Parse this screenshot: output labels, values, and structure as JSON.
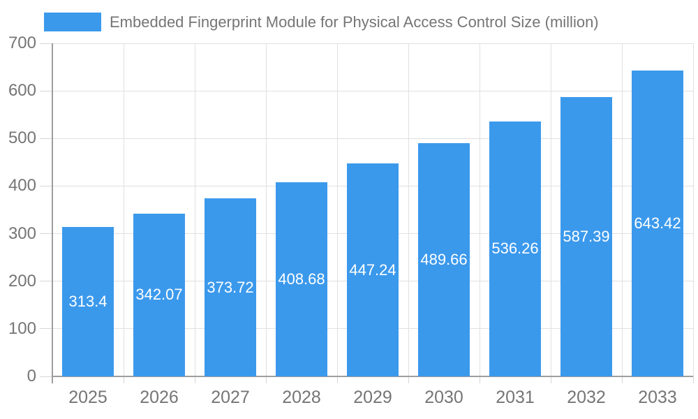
{
  "chart_data": {
    "type": "bar",
    "title": "Embedded Fingerprint Module for Physical Access Control Size (million)",
    "series_name": "Embedded Fingerprint Module for Physical Access Control Size (million)",
    "categories": [
      "2025",
      "2026",
      "2027",
      "2028",
      "2029",
      "2030",
      "2031",
      "2032",
      "2033"
    ],
    "values": [
      313.4,
      342.07,
      373.72,
      408.68,
      447.24,
      489.66,
      536.26,
      587.39,
      643.42
    ],
    "xlabel": "",
    "ylabel": "",
    "ylim": [
      0,
      700
    ],
    "yticks": [
      0,
      100,
      200,
      300,
      400,
      500,
      600,
      700
    ],
    "grid": true,
    "legend_position": "top",
    "value_label_position": "inside-center",
    "colors": {
      "bar": "#3B99EC",
      "value_label": "#FFFFFF",
      "axis_text": "#757575",
      "grid_line": "#E0E0E0",
      "tick_line": "#D6D6D6",
      "axis_line": "#9E9E9E",
      "background": "#FFFFFF"
    }
  }
}
